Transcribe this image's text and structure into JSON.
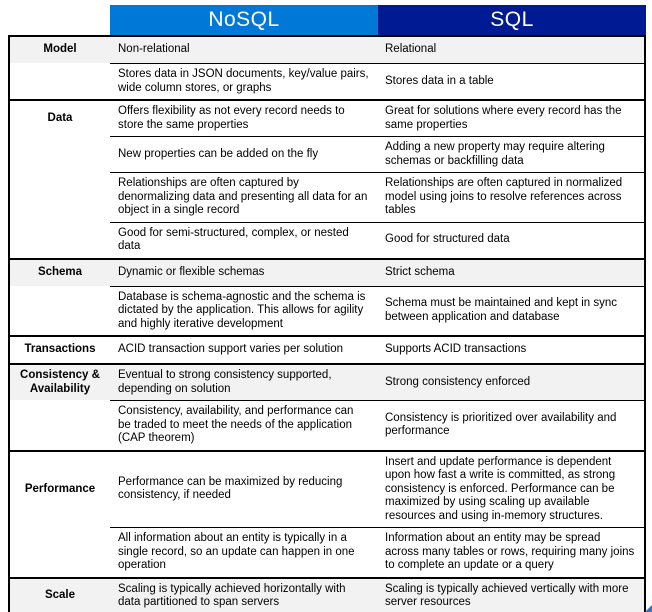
{
  "header": {
    "nosql_label": "NoSQL",
    "sql_label": "SQL"
  },
  "colors": {
    "nosql_header_bg": "#0078d7",
    "sql_header_bg": "#001a94",
    "header_text": "#ffffff",
    "shaded_row_bg": "#f2f2f2",
    "border": "#000000",
    "text": "#000000"
  },
  "sections": [
    {
      "label": "Model",
      "rows": [
        {
          "shaded": true,
          "nosql": "Non-relational",
          "sql": "Relational"
        },
        {
          "shaded": false,
          "nosql": "Stores data in JSON documents, key/value pairs, wide column stores, or graphs",
          "sql": "Stores data in a table"
        }
      ]
    },
    {
      "label": "Data",
      "rows": [
        {
          "shaded": false,
          "nosql": "Offers flexibility as not every record needs to store the same properties",
          "sql": "Great for solutions where every record has the same properties"
        },
        {
          "shaded": false,
          "nosql": "New properties can be added on the fly",
          "sql": "Adding a new property may require altering schemas or backfilling data"
        },
        {
          "shaded": false,
          "nosql": "Relationships are often captured by denormalizing data and presenting all data for an object in a single record",
          "sql": "Relationships are often captured in normalized model using joins to resolve references across tables"
        },
        {
          "shaded": false,
          "nosql": "Good for semi-structured, complex, or nested data",
          "sql": "Good for structured data"
        }
      ]
    },
    {
      "label": "Schema",
      "rows": [
        {
          "shaded": true,
          "nosql": "Dynamic or flexible schemas",
          "sql": "Strict schema"
        },
        {
          "shaded": false,
          "nosql": "Database is schema-agnostic and the schema is dictated by the application. This allows for agility and highly iterative development",
          "sql": "Schema must be maintained and kept in sync between application and database"
        }
      ]
    },
    {
      "label": "Transactions",
      "rows": [
        {
          "shaded": false,
          "nosql": "ACID transaction support varies per solution",
          "sql": "Supports ACID transactions"
        }
      ]
    },
    {
      "label": "Consistency & Availability",
      "rows": [
        {
          "shaded": true,
          "nosql": "Eventual to strong consistency supported, depending on solution",
          "sql": "Strong consistency enforced"
        },
        {
          "shaded": false,
          "nosql": "Consistency, availability, and performance can be traded to meet the needs of the application (CAP theorem)",
          "sql": "Consistency is prioritized over availability and performance"
        }
      ]
    },
    {
      "label": "Performance",
      "rows": [
        {
          "shaded": false,
          "nosql": "Performance can be maximized by reducing consistency, if needed",
          "sql": "Insert and update performance is dependent upon how fast a write is committed, as strong consistency is enforced. Performance can be maximized by using scaling up available resources and using in-memory structures."
        },
        {
          "shaded": false,
          "nosql": "All information about an entity is typically in a single record, so an update can happen in one operation",
          "sql": "Information about an entity may be spread across many tables or rows, requiring many joins to complete an update or a query"
        }
      ]
    },
    {
      "label": "Scale",
      "rows": [
        {
          "shaded": true,
          "nosql": "Scaling is typically achieved horizontally with data partitioned to span servers",
          "sql": "Scaling is typically achieved vertically with more server resources"
        }
      ]
    }
  ]
}
